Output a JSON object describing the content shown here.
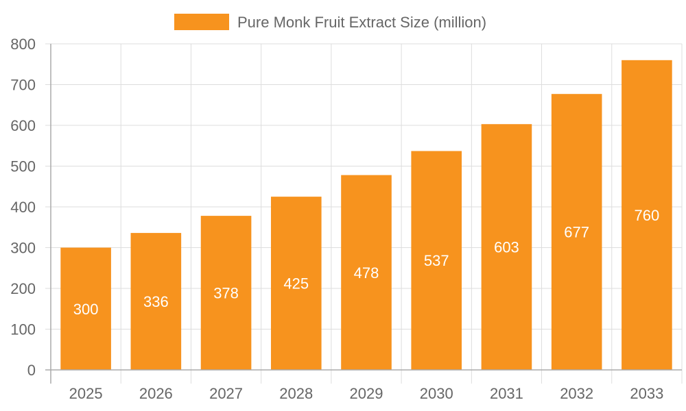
{
  "chart_data": {
    "type": "bar",
    "categories": [
      "2025",
      "2026",
      "2027",
      "2028",
      "2029",
      "2030",
      "2031",
      "2032",
      "2033"
    ],
    "series": [
      {
        "name": "Pure Monk Fruit Extract Size (million)",
        "values": [
          300,
          336,
          378,
          425,
          478,
          537,
          603,
          677,
          760
        ],
        "color": "#f7931e"
      }
    ],
    "data_labels": [
      "300",
      "336",
      "378",
      "425",
      "478",
      "537",
      "603",
      "677",
      "760"
    ],
    "ylim": [
      0,
      800
    ],
    "yticks": [
      "0",
      "100",
      "200",
      "300",
      "400",
      "500",
      "600",
      "700",
      "800"
    ],
    "grid": true,
    "legend": "top-center"
  }
}
